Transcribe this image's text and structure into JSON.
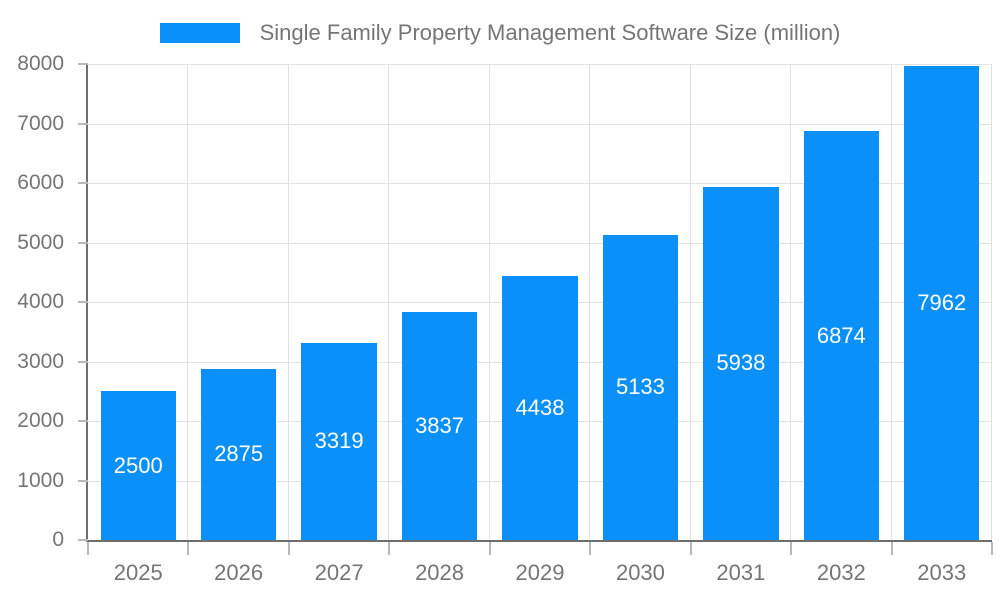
{
  "chart_data": {
    "type": "bar",
    "title": "Single Family Property Management Software Size (million)",
    "categories": [
      "2025",
      "2026",
      "2027",
      "2028",
      "2029",
      "2030",
      "2031",
      "2032",
      "2033"
    ],
    "values": [
      2500,
      2875,
      3319,
      3837,
      4438,
      5133,
      5938,
      6874,
      7962
    ],
    "xlabel": "",
    "ylabel": "",
    "ylim": [
      0,
      8000
    ],
    "y_ticks": [
      0,
      1000,
      2000,
      3000,
      4000,
      5000,
      6000,
      7000,
      8000
    ],
    "grid": true,
    "legend_position": "top",
    "bar_label_position": "inside-center"
  },
  "legend": {
    "label": "Single Family Property Management Software Size (million)"
  },
  "colors": {
    "bar": "#0b90f9",
    "grid": "#e2e2e2",
    "axis": "#6e6e6e",
    "tick": "#b9b9b9",
    "text": "#757575",
    "value_label": "#ffffff",
    "background": "#ffffff"
  }
}
